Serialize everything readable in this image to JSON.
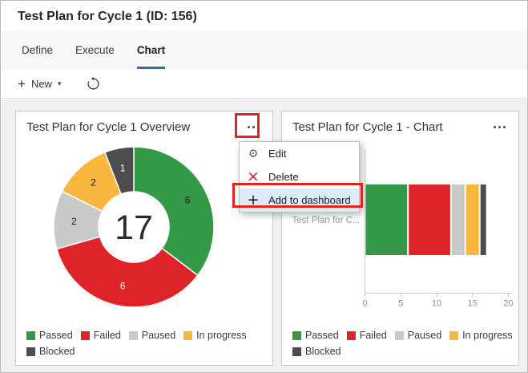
{
  "window": {
    "title": "Test Plan for Cycle 1 (ID: 156)"
  },
  "tabs": [
    {
      "label": "Define",
      "active": false
    },
    {
      "label": "Execute",
      "active": false
    },
    {
      "label": "Chart",
      "active": true
    }
  ],
  "toolbar": {
    "new_label": "New"
  },
  "colors": {
    "accent_blue": "#2b6cb5",
    "annotation_red": "#e3231e",
    "menu_highlight": "#dcebf9",
    "axis_line": "#c8c8c8",
    "axis_text": "#8f8f8f"
  },
  "cards": {
    "overview": {
      "title": "Test Plan for Cycle 1 Overview"
    },
    "chart": {
      "title": "Test Plan for Cycle 1 - Chart"
    }
  },
  "menu": {
    "items": [
      {
        "label": "Edit",
        "icon": "gear-icon",
        "highlighted": false
      },
      {
        "label": "Delete",
        "icon": "delete-icon",
        "highlighted": false
      },
      {
        "label": "Add to dashboard",
        "icon": "plus-icon",
        "highlighted": true
      }
    ]
  },
  "legend": [
    {
      "label": "Passed",
      "color": "#339947"
    },
    {
      "label": "Failed",
      "color": "#df2429"
    },
    {
      "label": "Paused",
      "color": "#c9c9c9"
    },
    {
      "label": "In progress",
      "color": "#f9b73e"
    },
    {
      "label": "Blocked",
      "color": "#4d4d4d"
    }
  ],
  "chart_data": [
    {
      "type": "pie",
      "subtype": "donut",
      "title": "Test Plan for Cycle 1 Overview",
      "center_label": "17",
      "total": 17,
      "segments": [
        {
          "name": "Passed",
          "value": 6,
          "color": "#339947",
          "label_color": "#1d1d1d"
        },
        {
          "name": "Failed",
          "value": 6,
          "color": "#df2429",
          "label_color": "#ffffff"
        },
        {
          "name": "Paused",
          "value": 2,
          "color": "#c9c9c9",
          "label_color": "#1d1d1d"
        },
        {
          "name": "In progress",
          "value": 2,
          "color": "#f9b73e",
          "label_color": "#1d1d1d"
        },
        {
          "name": "Blocked",
          "value": 1,
          "color": "#4d4d4d",
          "label_color": "#ffffff"
        }
      ],
      "legend_position": "bottom"
    },
    {
      "type": "bar",
      "subtype": "horizontal-stacked",
      "title": "Test Plan for Cycle 1 - Chart",
      "categories": [
        "Test Plan for C..."
      ],
      "series": [
        {
          "name": "Passed",
          "values": [
            6
          ],
          "color": "#339947"
        },
        {
          "name": "Failed",
          "values": [
            6
          ],
          "color": "#df2429"
        },
        {
          "name": "Paused",
          "values": [
            2
          ],
          "color": "#c9c9c9"
        },
        {
          "name": "In progress",
          "values": [
            2
          ],
          "color": "#f9b73e"
        },
        {
          "name": "Blocked",
          "values": [
            1
          ],
          "color": "#4d4d4d"
        }
      ],
      "xlim": [
        0,
        20
      ],
      "x_ticks": [
        0,
        5,
        10,
        15,
        20
      ],
      "grid": false,
      "legend_position": "bottom"
    }
  ]
}
